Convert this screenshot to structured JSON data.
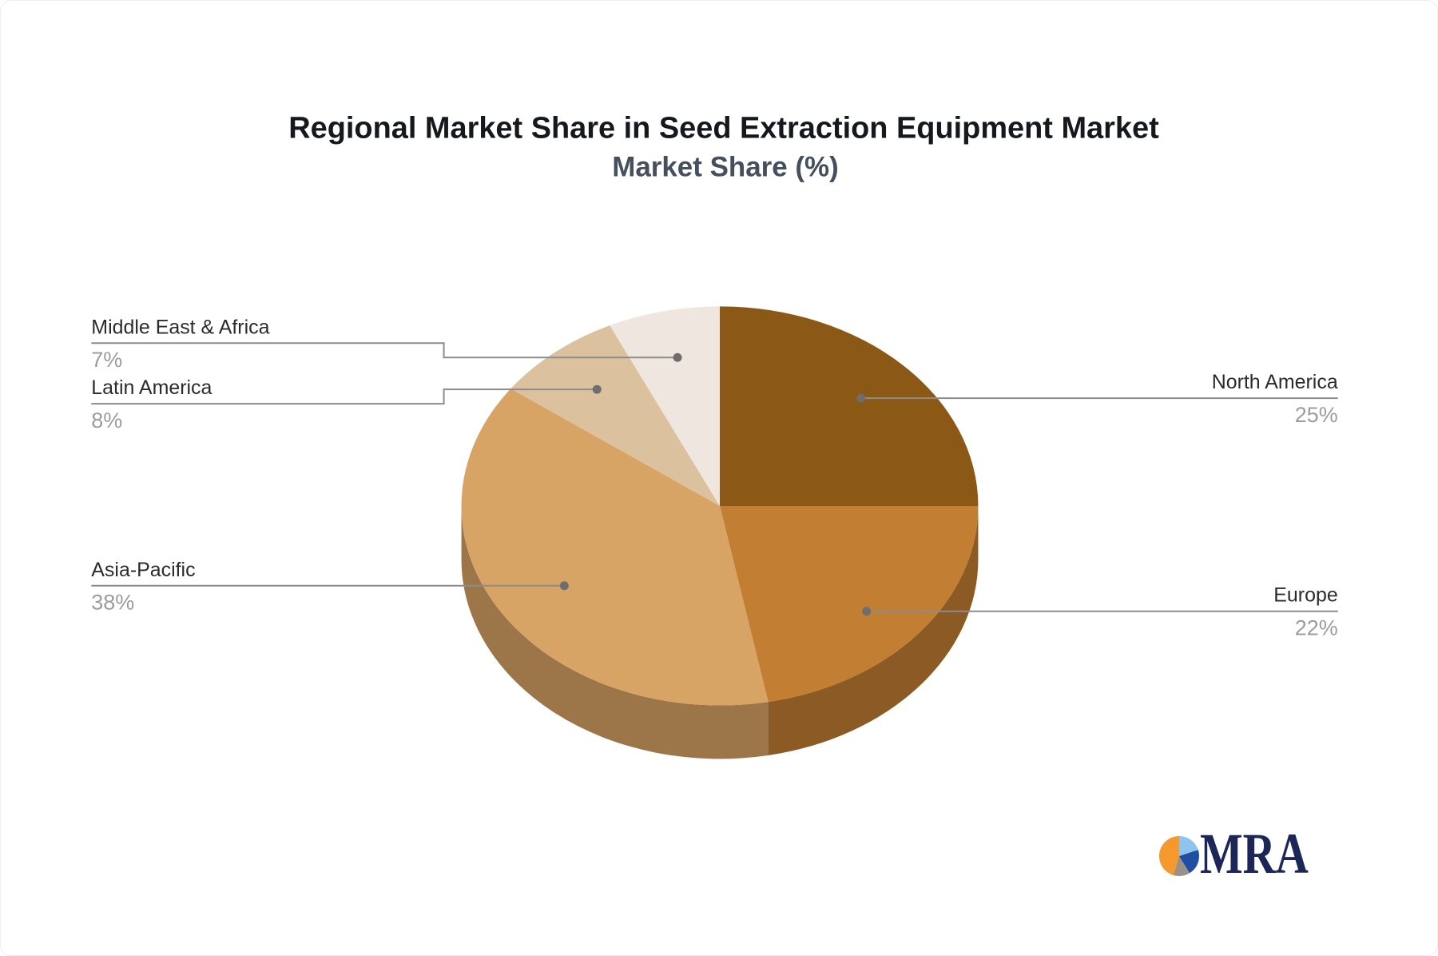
{
  "chart_data": {
    "type": "pie",
    "title": "Regional Market Share in Seed Extraction Equipment Market",
    "subtitle": "Market Share (%)",
    "unit": "%",
    "effect": "3d",
    "start_angle_deg": 0,
    "direction": "clockwise",
    "legend_position": "callout-labels",
    "labels": [
      "North America",
      "Europe",
      "Asia-Pacific",
      "Latin America",
      "Middle East & Africa"
    ],
    "values": [
      25,
      22,
      38,
      8,
      7
    ],
    "colors": [
      "#8B5816",
      "#C27F33",
      "#D8A466",
      "#DBC19E",
      "#EEE6DF"
    ]
  },
  "callouts": {
    "north_america": {
      "label": "North America",
      "value": "25%"
    },
    "europe": {
      "label": "Europe",
      "value": "22%"
    },
    "asia_pacific": {
      "label": "Asia-Pacific",
      "value": "38%"
    },
    "latin_america": {
      "label": "Latin America",
      "value": "8%"
    },
    "middle_east_africa": {
      "label": "Middle East & Africa",
      "value": "7%"
    }
  },
  "logo": {
    "text": "MRA",
    "text_color": "#1d2757",
    "icon_segments": [
      {
        "name": "light-blue",
        "color": "#8FC4EE",
        "to_deg": 72
      },
      {
        "name": "dark-blue",
        "color": "#1F4FA3",
        "to_deg": 148
      },
      {
        "name": "gray",
        "color": "#9A9189",
        "to_deg": 196
      },
      {
        "name": "orange",
        "color": "#F5992E",
        "to_deg": 360
      }
    ]
  },
  "theme": {
    "background": "#ffffff",
    "title_color": "#15181c",
    "subtitle_color": "#44505e",
    "label_color": "#2b2b2b",
    "value_color": "#9c9c9c",
    "line_color": "#8c8c8c",
    "dot_color": "#6e6e6e",
    "logo_text_color": "#1d2757"
  }
}
